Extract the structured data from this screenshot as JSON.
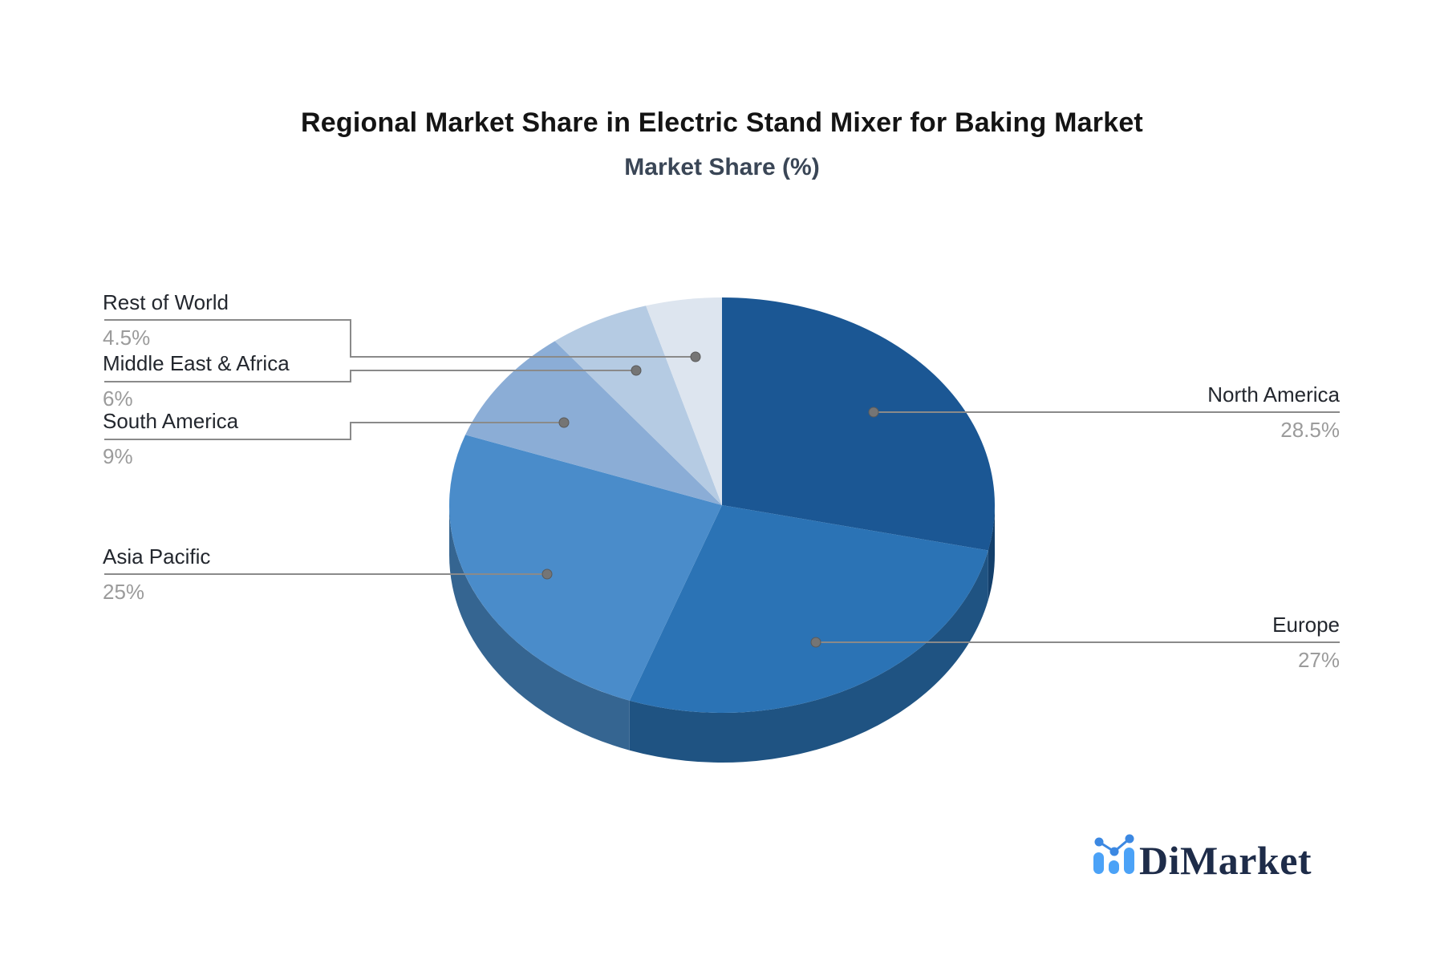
{
  "title": "Regional Market Share in Electric Stand Mixer for Baking Market",
  "subtitle": "Market Share (%)",
  "chart_data": {
    "type": "pie",
    "title": "Regional Market Share in Electric Stand Mixer for Baking Market",
    "subtitle": "Market Share (%)",
    "unit": "%",
    "style": "pseudo-3d",
    "start_angle": "12-o'clock",
    "direction": "clockwise",
    "legend_position": "callout-labels",
    "slices": [
      {
        "label": "North America",
        "value": 28.5,
        "pct_label": "28.5%",
        "color": "#1b5794",
        "callout_side": "right"
      },
      {
        "label": "Europe",
        "value": 27,
        "pct_label": "27%",
        "color": "#2b73b5",
        "callout_side": "right"
      },
      {
        "label": "Asia Pacific",
        "value": 25,
        "pct_label": "25%",
        "color": "#4a8cca",
        "callout_side": "left"
      },
      {
        "label": "South America",
        "value": 9,
        "pct_label": "9%",
        "color": "#8badd6",
        "callout_side": "left"
      },
      {
        "label": "Middle East & Africa",
        "value": 6,
        "pct_label": "6%",
        "color": "#b5cbe3",
        "callout_side": "left"
      },
      {
        "label": "Rest of World",
        "value": 4.5,
        "pct_label": "4.5%",
        "color": "#dde5ef",
        "callout_side": "left"
      }
    ],
    "connector_color": "#8a8a8a",
    "dot_color": "#757575",
    "label_color": "#23272e",
    "pct_color": "#9b9b9b"
  },
  "logo": {
    "text": "DiMarket",
    "icon": "bar-line-chart-icon",
    "icon_bar_color": "#4ba2f7",
    "icon_dot_color": "#3c88e2",
    "text_color": "#1e2c49"
  }
}
